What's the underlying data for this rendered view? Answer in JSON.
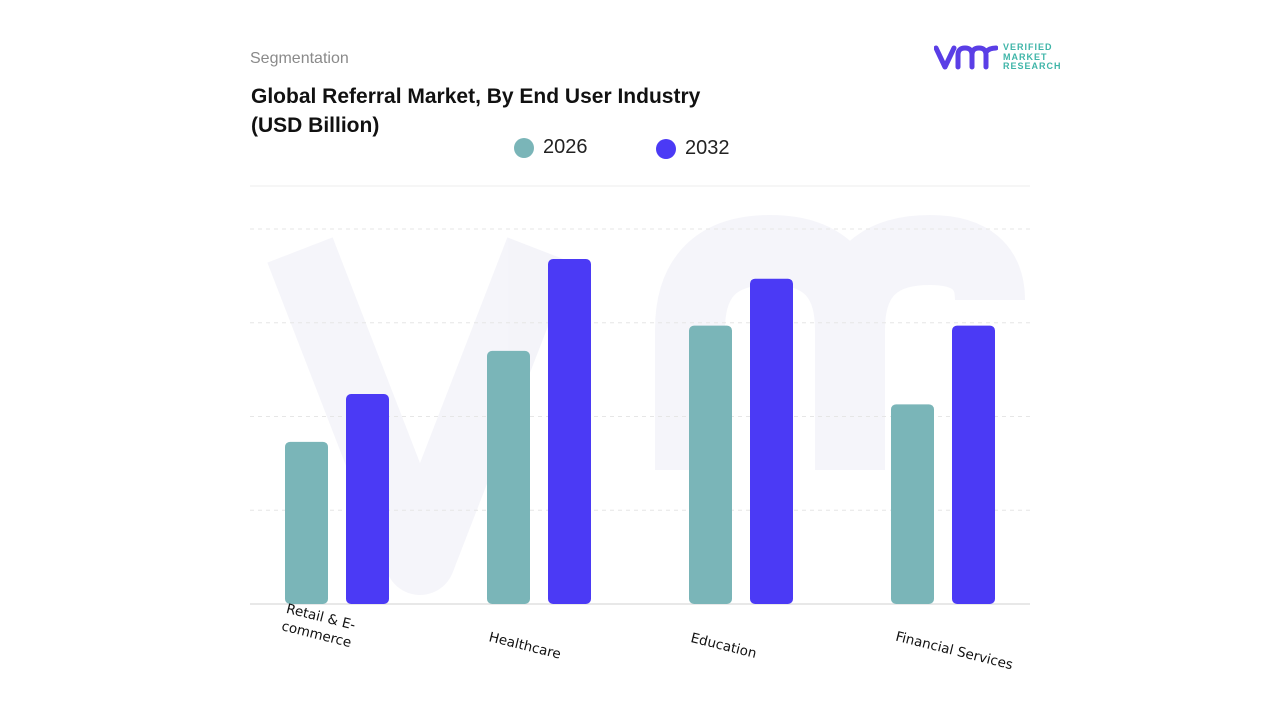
{
  "header": {
    "segment_label": "Segmentation",
    "title_line1": "Global Referral Market, By End User Industry",
    "title_line2": "(USD Billion)"
  },
  "logo": {
    "mark": "vmr",
    "line1": "VERIFIED",
    "line2": "MARKET",
    "line3": "RESEARCH"
  },
  "colors": {
    "series_2026": "#7ab5b8",
    "series_2032": "#4b3af5",
    "grid": "#e3e3e3",
    "logo_purple": "#5a3ee6",
    "logo_teal": "#3fb5a8"
  },
  "chart_data": {
    "type": "bar",
    "title": "Global Referral Market, By End User Industry (USD Billion)",
    "categories": [
      "Retail & E-commerce",
      "Healthcare",
      "Education",
      "Financial Services"
    ],
    "category_lines": [
      [
        "Retail & E-",
        "commerce"
      ],
      [
        "Healthcare"
      ],
      [
        "Education"
      ],
      [
        "Financial Services"
      ]
    ],
    "series": [
      {
        "name": "2026",
        "values": [
          1.73,
          2.7,
          2.97,
          2.13
        ]
      },
      {
        "name": "2032",
        "values": [
          2.24,
          3.68,
          3.47,
          2.97
        ]
      }
    ],
    "ylim": [
      0,
      4
    ],
    "grid": true,
    "legend": "top-center",
    "xlabel": "",
    "ylabel": ""
  }
}
